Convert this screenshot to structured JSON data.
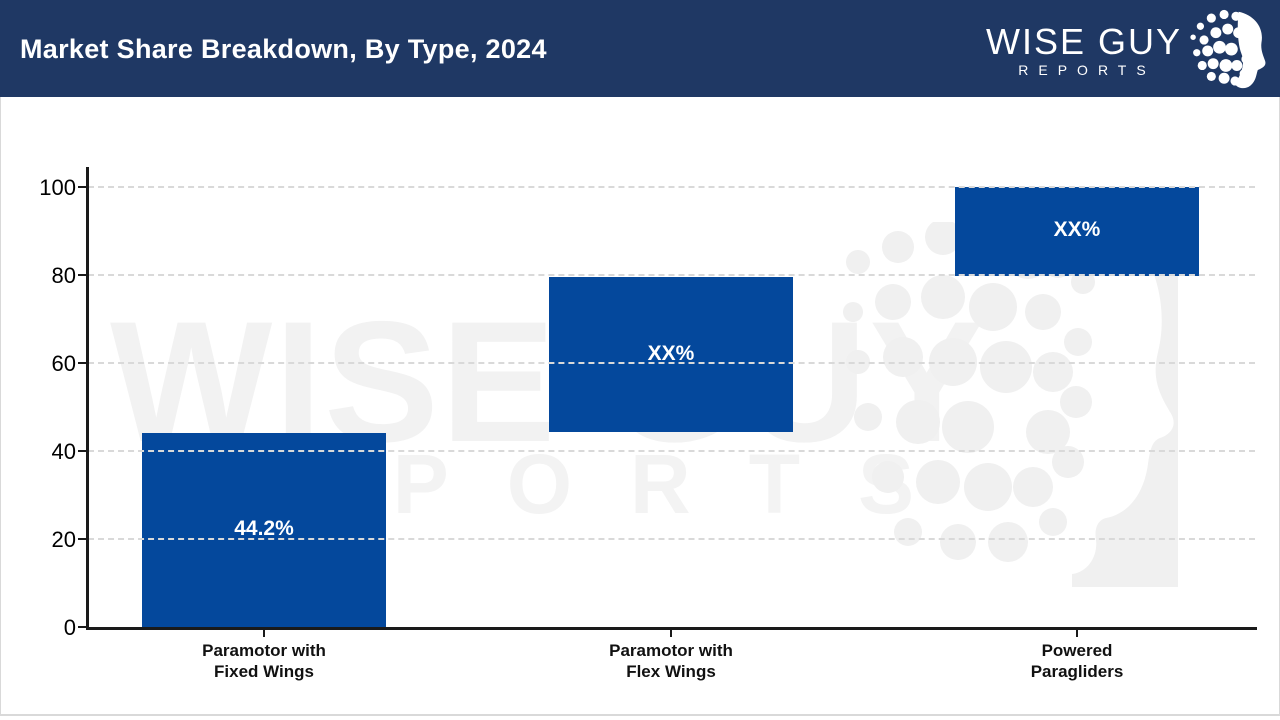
{
  "header": {
    "title": "Market Share Breakdown, By Type, 2024",
    "logo": {
      "line1": "WISE GUY",
      "line2": "REPORTS"
    }
  },
  "watermark": {
    "line1": "WISE GUY",
    "line2": "REPORTS"
  },
  "chart_data": {
    "type": "bar",
    "subtype": "waterfall-market-share",
    "title": "Market Share Breakdown, By Type, 2024",
    "categories": [
      {
        "line1": "Paramotor with",
        "line2": "Fixed Wings"
      },
      {
        "line1": "Paramotor with",
        "line2": "Flex Wings"
      },
      {
        "line1": "Powered",
        "line2": "Paragliders"
      }
    ],
    "segments": [
      {
        "category": "Paramotor with Fixed Wings",
        "start": 0,
        "end": 44.2,
        "value_label": "44.2%"
      },
      {
        "category": "Paramotor with Flex Wings",
        "start": 44.3,
        "end": 79.5,
        "value_label": "XX%"
      },
      {
        "category": "Powered Paragliders",
        "start": 79.8,
        "end": 100,
        "value_label": "XX%"
      }
    ],
    "yticks": [
      0,
      20,
      40,
      60,
      80,
      100
    ],
    "ylim": [
      0,
      104
    ],
    "grid": "horizontal-dashed",
    "legend": "none",
    "bar_color": "#04489C",
    "value_label_color": "#ffffff",
    "header_color": "#1F3864",
    "gridline_color": "#d9d9d9"
  }
}
